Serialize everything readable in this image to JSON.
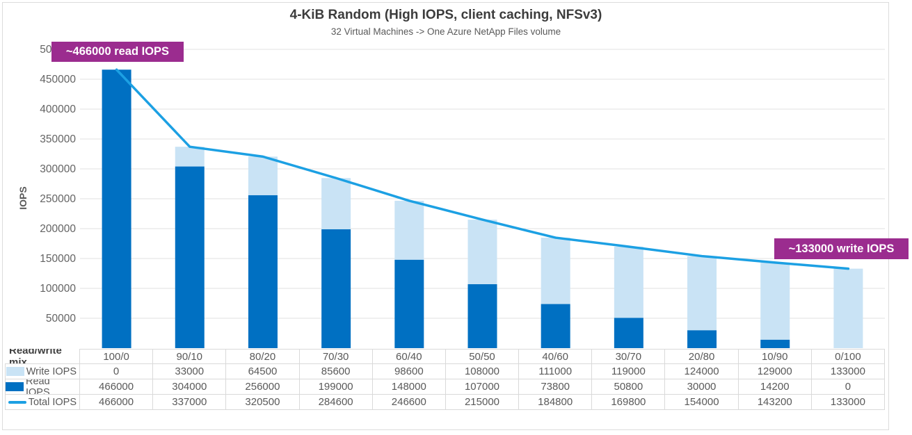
{
  "annotations": {
    "read": "~466000 read IOPS",
    "write": "~133000 write IOPS",
    "box_color": "#9b2c8f"
  },
  "chart_data": {
    "type": "bar",
    "subtype": "stacked-bars-with-total-line",
    "title": "4-KiB Random (High IOPS, client caching, NFSv3)",
    "subtitle": "32 Virtual Machines -> One Azure NetApp Files volume",
    "xlabel": "Read/write mix",
    "ylabel": "IOPS",
    "ylim": [
      0,
      500000
    ],
    "ytick_step": 50000,
    "grid": true,
    "legend_position": "table-left",
    "categories": [
      "100/0",
      "90/10",
      "80/20",
      "70/30",
      "60/40",
      "50/50",
      "40/60",
      "30/70",
      "20/80",
      "10/90",
      "0/100"
    ],
    "series": [
      {
        "name": "Write IOPS",
        "type": "bar",
        "color": "#c9e3f5",
        "values": [
          0,
          33000,
          64500,
          85600,
          98600,
          108000,
          111000,
          119000,
          124000,
          129000,
          133000
        ]
      },
      {
        "name": "Read IOPS",
        "type": "bar",
        "color": "#0070c2",
        "values": [
          466000,
          304000,
          256000,
          199000,
          148000,
          107000,
          73800,
          50800,
          30000,
          14200,
          0
        ]
      },
      {
        "name": "Total IOPS",
        "type": "line",
        "color": "#1ca0e3",
        "values": [
          466000,
          337000,
          320500,
          284600,
          246600,
          215000,
          184800,
          169800,
          154000,
          143200,
          133000
        ]
      }
    ],
    "gridline_color": "#e2e2e2",
    "tick_color": "#636363"
  }
}
